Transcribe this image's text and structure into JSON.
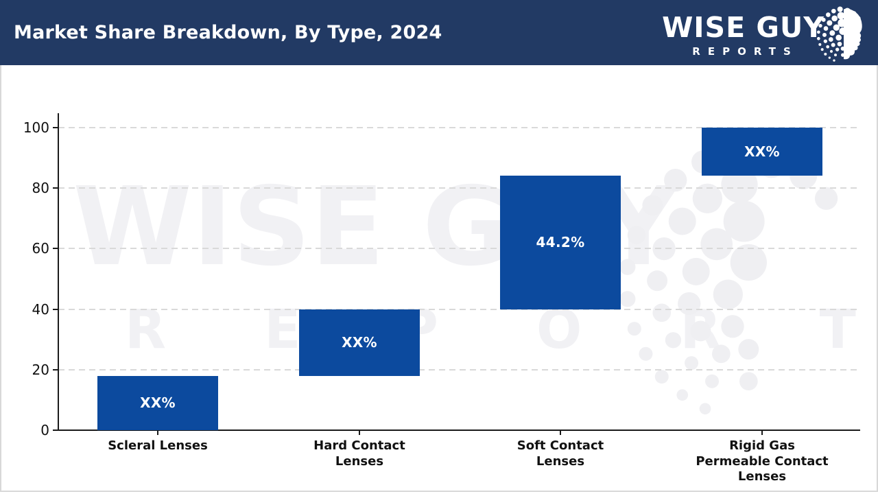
{
  "header": {
    "title": "Market Share Breakdown, By Type, 2024",
    "bg_color": "#223a64",
    "logo": {
      "line1": "WISE GUY",
      "line2": "REPORTS"
    }
  },
  "watermark": {
    "line1": "WISE GUY",
    "line2": "R E P O R T S"
  },
  "chart_data": {
    "type": "bar",
    "subtype": "floating-waterfall",
    "title": "Market Share Breakdown, By Type, 2024",
    "xlabel": "",
    "ylabel": "",
    "ylim": [
      0,
      103.5
    ],
    "yticks": [
      0,
      20,
      40,
      60,
      80,
      100
    ],
    "grid": "horizontal-dashed",
    "legend": "none",
    "bar_color": "#0c4a9e",
    "value_label_color": "#ffffff",
    "categories": [
      "Scleral Lenses",
      "Hard Contact Lenses",
      "Soft Contact Lenses",
      "Rigid Gas Permeable Contact Lenses"
    ],
    "bars": [
      {
        "category": "Scleral Lenses",
        "label_lines": [
          "Scleral Lenses"
        ],
        "base": 0,
        "top": 18,
        "value": 18,
        "value_label": "XX%"
      },
      {
        "category": "Hard Contact Lenses",
        "label_lines": [
          "Hard Contact",
          "Lenses"
        ],
        "base": 18,
        "top": 40,
        "value": 22,
        "value_label": "XX%"
      },
      {
        "category": "Soft Contact Lenses",
        "label_lines": [
          "Soft Contact",
          "Lenses"
        ],
        "base": 40,
        "top": 84.2,
        "value": 44.2,
        "value_label": "44.2%"
      },
      {
        "category": "Rigid Gas Permeable Contact Lenses",
        "label_lines": [
          "Rigid Gas",
          "Permeable Contact",
          "Lenses"
        ],
        "base": 84.2,
        "top": 100,
        "value": 15.8,
        "value_label": "XX%"
      }
    ]
  }
}
